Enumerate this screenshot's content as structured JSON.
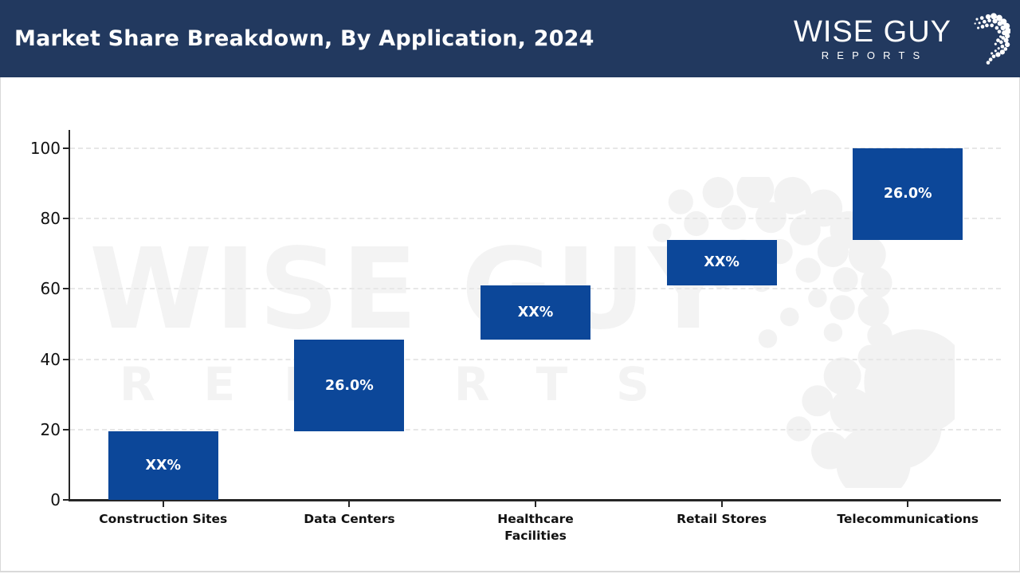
{
  "header": {
    "title": "Market Share Breakdown, By Application, 2024",
    "bg_color": "#22395f",
    "logo": {
      "wordmark": "WISE GUY",
      "subtitle": "REPORTS"
    }
  },
  "watermark": {
    "line1": "WISE GUY",
    "line2": "REPORTS"
  },
  "chart_data": {
    "type": "bar",
    "subtype": "waterfall-floating",
    "title": "Market Share Breakdown, By Application, 2024",
    "categories": [
      "Construction Sites",
      "Data Centers",
      "Healthcare\nFacilities",
      "Retail Stores",
      "Telecommunications"
    ],
    "series": [
      {
        "name": "Market share (%)",
        "segments": [
          {
            "category": "Construction Sites",
            "start": 0,
            "end": 19.5,
            "label": "XX%"
          },
          {
            "category": "Data Centers",
            "start": 19.5,
            "end": 45.5,
            "label": "26.0%"
          },
          {
            "category": "Healthcare Facilities",
            "start": 45.5,
            "end": 61,
            "label": "XX%"
          },
          {
            "category": "Retail Stores",
            "start": 61,
            "end": 74,
            "label": "XX%"
          },
          {
            "category": "Telecommunications",
            "start": 74,
            "end": 100,
            "label": "26.0%"
          }
        ]
      }
    ],
    "ylim": [
      0,
      100
    ],
    "yticks": [
      0,
      20,
      40,
      60,
      80,
      100
    ],
    "xlabel": "",
    "ylabel": "",
    "grid": "horizontal-dashed",
    "legend": "none",
    "colors": {
      "bar": "#0c4799",
      "bar_label": "#ffffff",
      "axis": "#262626",
      "tick_label": "#111111",
      "gridline": "#e7e7e7",
      "watermark": "#f3f3f3"
    }
  }
}
